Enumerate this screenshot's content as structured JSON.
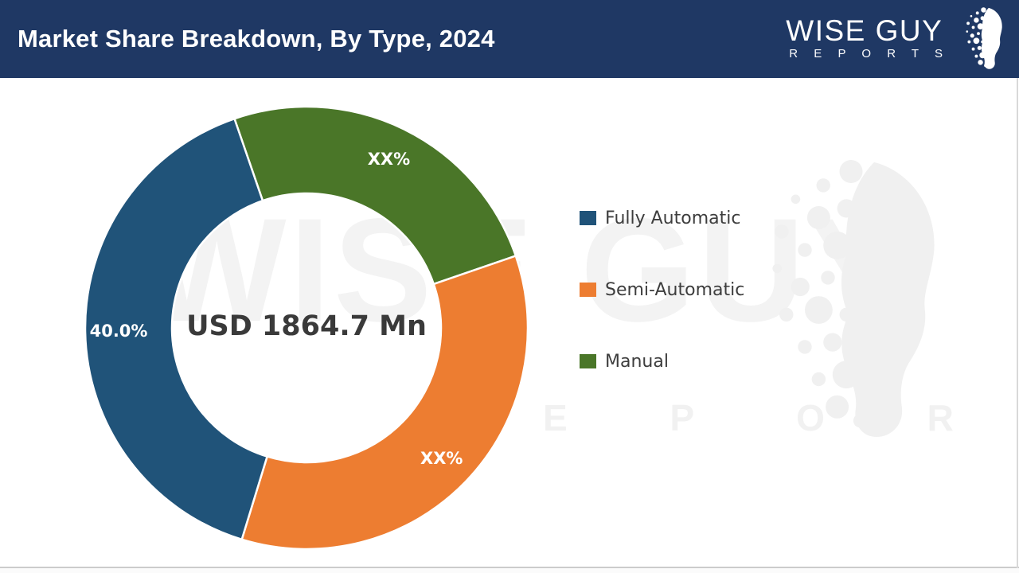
{
  "header": {
    "title": "Market Share Breakdown, By Type, 2024",
    "background_color": "#1f3864",
    "logo": {
      "line1": "WISE GUY",
      "line2": "R E P O R T S"
    }
  },
  "watermark": {
    "line1": "WISE GUY",
    "line2": "R E P O R T S"
  },
  "chart_data": {
    "type": "pie",
    "subtype": "donut",
    "title": "Market Share Breakdown, By Type, 2024",
    "center_label": "USD 1864.7 Mn",
    "start_angle_deg_cw_from_top": -19,
    "direction": "clockwise",
    "segments": [
      {
        "name": "Manual",
        "value": 25,
        "display_label": "XX%",
        "color": "#4a7628"
      },
      {
        "name": "Semi-Automatic",
        "value": 35,
        "display_label": "XX%",
        "color": "#ed7d31"
      },
      {
        "name": "Fully Automatic",
        "value": 40,
        "display_label": "40.0%",
        "color": "#205379"
      }
    ],
    "legend": [
      {
        "label": "Fully Automatic",
        "color": "#205379"
      },
      {
        "label": "Semi-Automatic",
        "color": "#ed7d31"
      },
      {
        "label": "Manual",
        "color": "#4a7628"
      }
    ],
    "legend_position": "right",
    "label_color": "#ffffff",
    "separator_color": "#ffffff"
  }
}
